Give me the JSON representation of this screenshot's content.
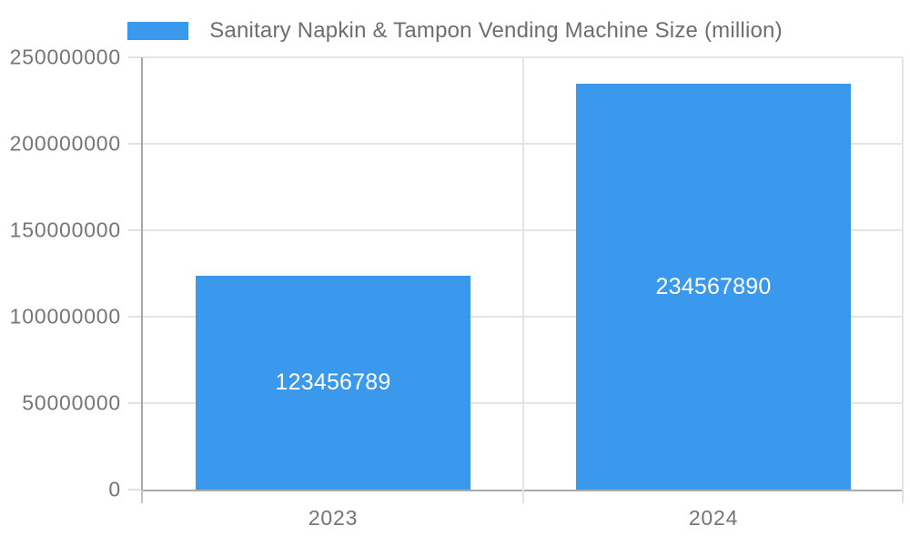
{
  "legend": {
    "label": "Sanitary Napkin & Tampon Vending Machine Size (million)",
    "swatch_color": "#3A98ED"
  },
  "chart_data": {
    "type": "bar",
    "title": "Sanitary Napkin & Tampon Vending Machine Size (million)",
    "categories": [
      "2023",
      "2024"
    ],
    "series": [
      {
        "name": "Sanitary Napkin & Tampon Vending Machine Size (million)",
        "values": [
          123456789,
          234567890
        ]
      }
    ],
    "data_labels": [
      "123456789",
      "234567890"
    ],
    "y_tick_labels": [
      "250000000",
      "200000000",
      "150000000",
      "100000000",
      "50000000",
      "0"
    ],
    "ylim": [
      0,
      250000000
    ],
    "xlabel": "",
    "ylabel": "",
    "grid": true,
    "legend_position": "top-center",
    "bar_color": "#3A98ED",
    "data_label_color": "#FFFFFF",
    "axis_color": "#A7A7A7",
    "gridline_color": "#E5E5E5",
    "tick_label_color": "#757575"
  }
}
